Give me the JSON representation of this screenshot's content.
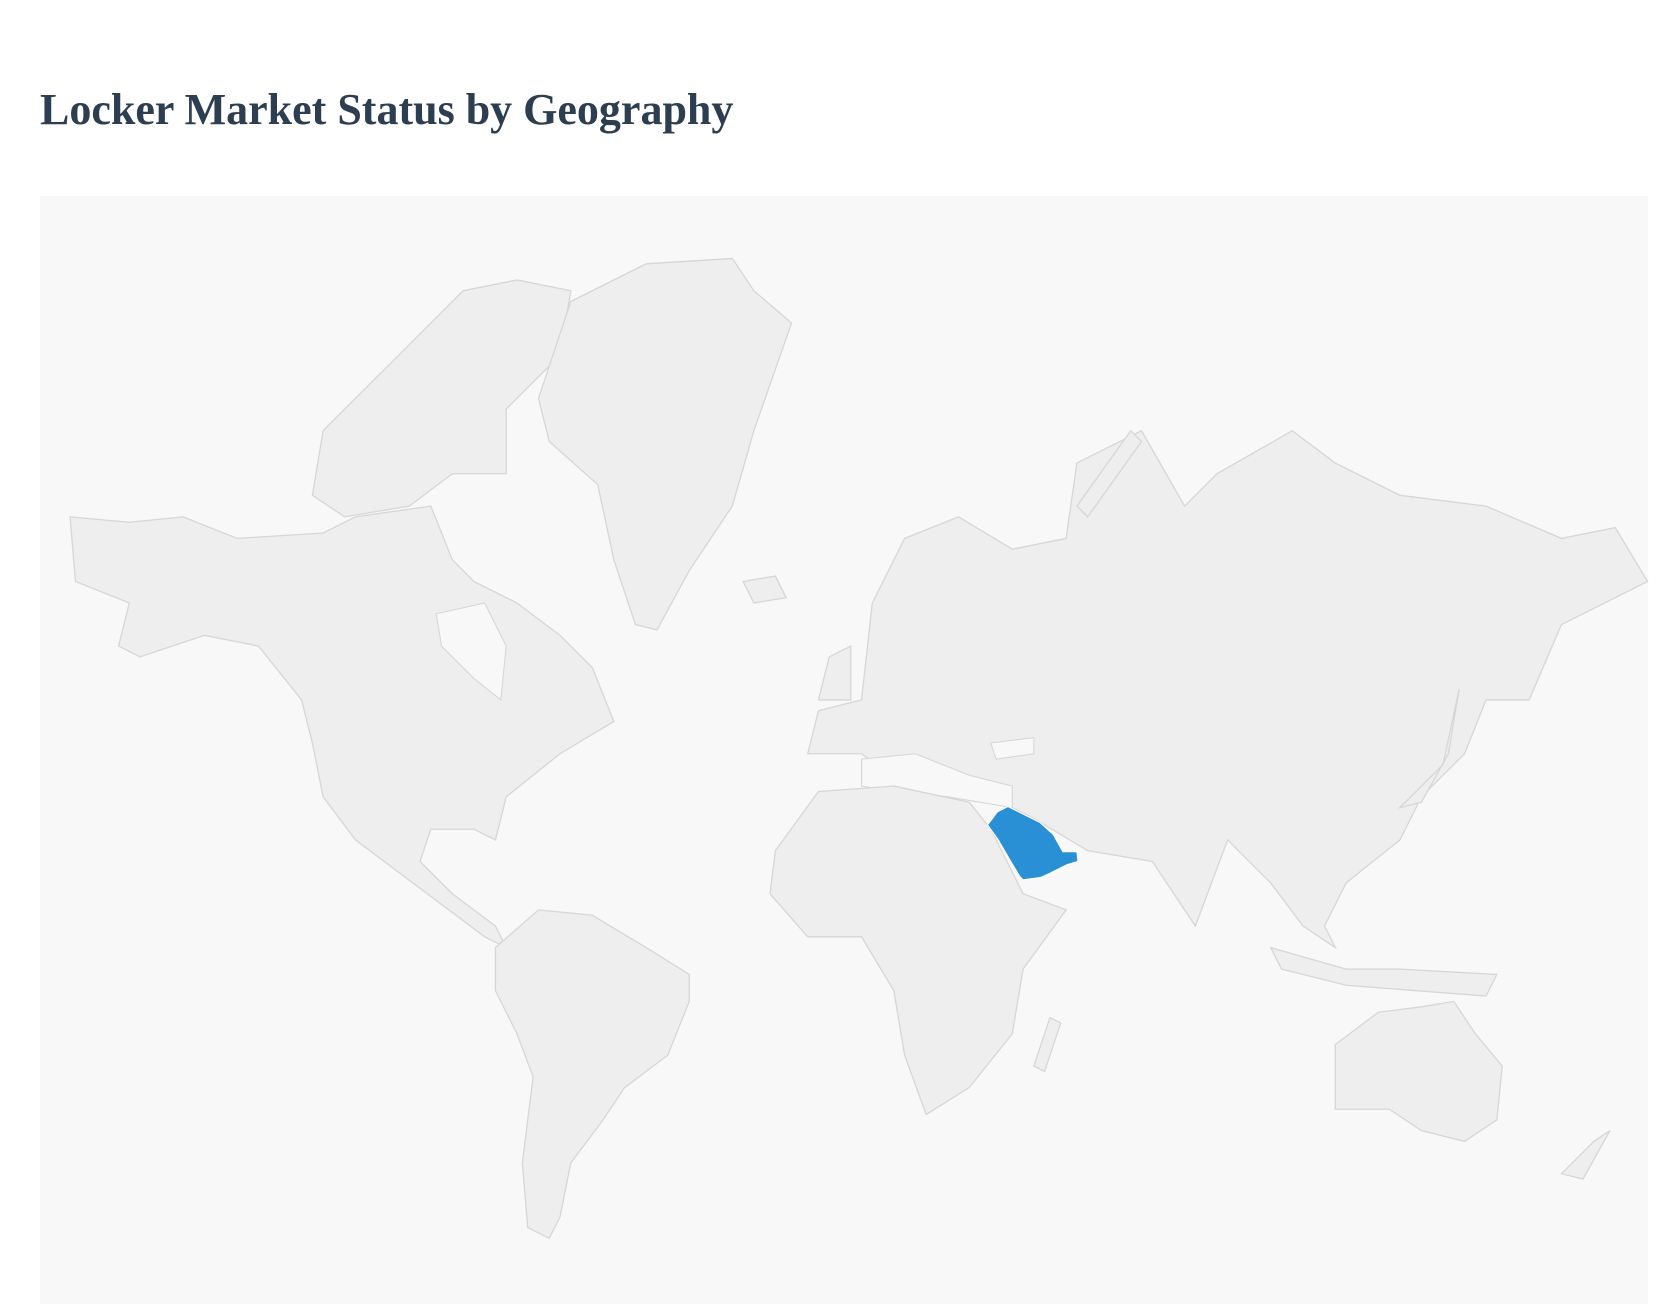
{
  "page": {
    "title": "Locker Market Status by Geography"
  },
  "map": {
    "type": "world-choropleth",
    "projection": "mercator",
    "land_color": "#eeeeee",
    "border_color": "#d6d6d6",
    "background_color": "#f8f8f8",
    "highlighted_regions": [
      {
        "region": "Saudi Arabia",
        "color": "#2990d6"
      }
    ]
  }
}
